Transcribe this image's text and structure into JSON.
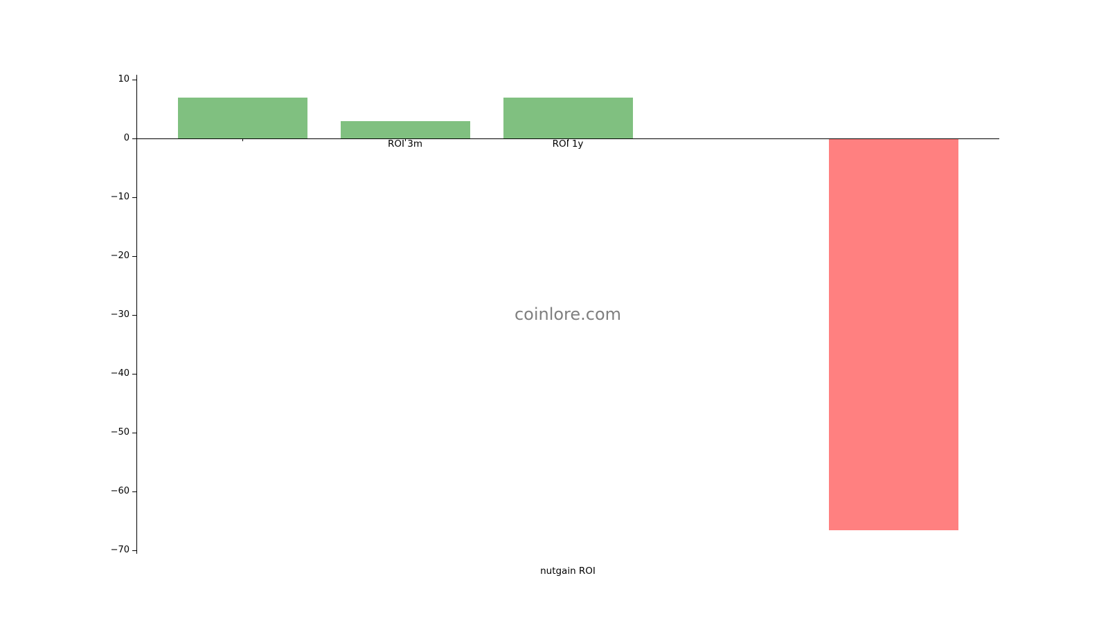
{
  "chart_data": {
    "type": "bar",
    "title": "",
    "xlabel": "nutgain ROI",
    "watermark": "coinlore.com",
    "categories": [
      "",
      "ROI 3m",
      "ROI 1y",
      ""
    ],
    "values": [
      7,
      3,
      7,
      -66.6
    ],
    "bar_colors": [
      "#80c080",
      "#80c080",
      "#80c080",
      "#ff8080"
    ],
    "positive_color": "#80c080",
    "negative_color": "#ff8080",
    "axis_color": "#000000",
    "watermark_color": "#7f7f7f",
    "yticks": [
      10,
      0,
      -10,
      -20,
      -30,
      -40,
      -50,
      -60,
      -70
    ],
    "ylim": [
      -70.7,
      10.7
    ],
    "grid": false,
    "legend": null
  }
}
